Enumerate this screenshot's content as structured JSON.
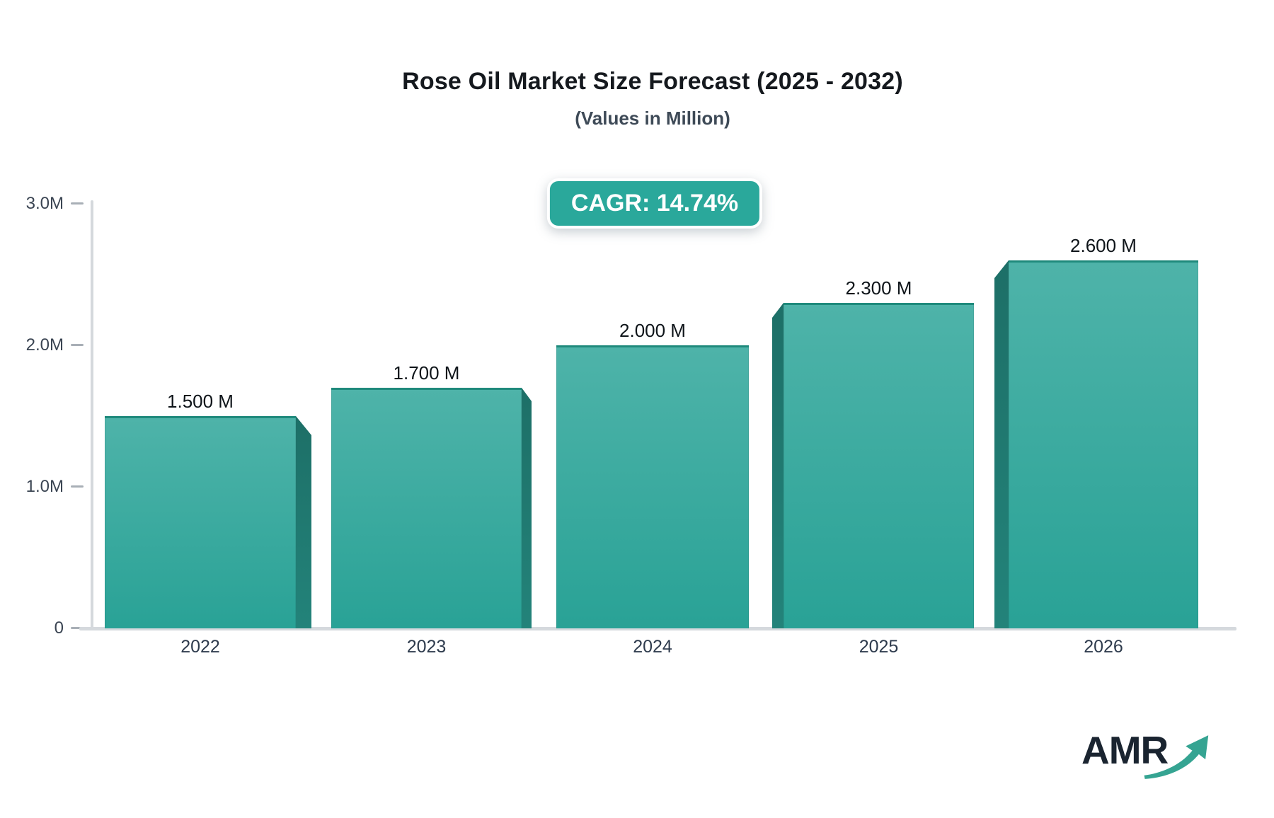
{
  "title": "Rose Oil Market Size Forecast (2025 - 2032)",
  "subtitle": "(Values in Million)",
  "badge": {
    "label": "CAGR: 14.74%",
    "bg_color": "#2aa89b",
    "text_color": "#ffffff"
  },
  "logo": {
    "text": "AMR",
    "text_color": "#1a2430",
    "arrow_color": "#35a492"
  },
  "chart_data": {
    "type": "bar",
    "categories": [
      "2022",
      "2023",
      "2024",
      "2025",
      "2026"
    ],
    "values": [
      1.5,
      1.7,
      2.0,
      2.3,
      2.6
    ],
    "value_labels": [
      "1.500 M",
      "1.700 M",
      "2.000 M",
      "2.300 M",
      "2.600 M"
    ],
    "title": "Rose Oil Market Size Forecast (2025 - 2032)",
    "subtitle": "(Values in Million)",
    "unit": "Million",
    "xlabel": "",
    "ylabel": "",
    "ylim": [
      0,
      3.0
    ],
    "yticks": [
      {
        "value": 0,
        "label": "0"
      },
      {
        "value": 1.0,
        "label": "1.0M"
      },
      {
        "value": 2.0,
        "label": "2.0M"
      },
      {
        "value": 3.0,
        "label": "3.0M"
      }
    ],
    "grid": false,
    "legend": "none",
    "bar_style": "pseudo-3d",
    "colors": {
      "face_top": "#4eb3a9",
      "face_bottom": "#29a296",
      "side_top": "#1d6f67",
      "side_bottom": "#23837a",
      "top_edge": "#1f8a7c",
      "axis": "#d5d9dd",
      "tick": "#a8afb6",
      "tick_text": "#3a4452",
      "category_text": "#2e3b4d",
      "value_text": "#0e1419"
    }
  }
}
